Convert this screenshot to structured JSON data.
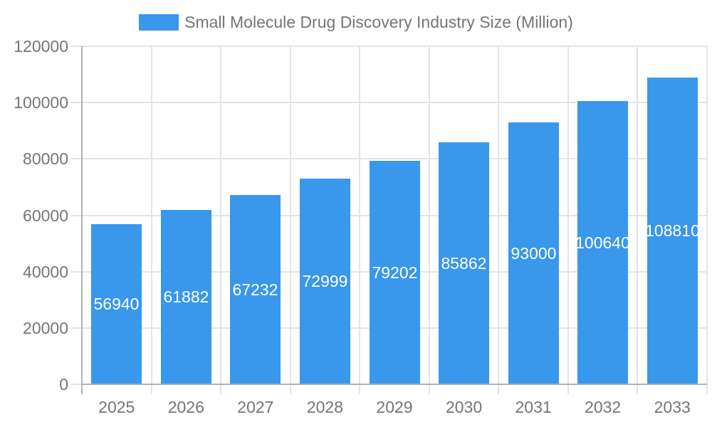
{
  "chart_data": {
    "type": "bar",
    "title": "Small Molecule Drug Discovery Industry Size (Million)",
    "categories": [
      "2025",
      "2026",
      "2027",
      "2028",
      "2029",
      "2030",
      "2031",
      "2032",
      "2033"
    ],
    "values": [
      56940,
      61882,
      67232,
      72999,
      79202,
      85862,
      93000,
      100640,
      108810
    ],
    "xlabel": "",
    "ylabel": "",
    "ylim": [
      0,
      120000
    ],
    "ytick_interval": 20000,
    "ytick_labels": [
      "0",
      "20000",
      "40000",
      "60000",
      "80000",
      "100000",
      "120000"
    ],
    "legend_position": "top",
    "grid": true,
    "value_labels_position": "inside-center",
    "colors": {
      "bar": "#3997EC",
      "bar_label": "#FFFFFF",
      "axis_text": "#757575",
      "axis_line": "#B2B2B2",
      "gridline": "#E4E4E4",
      "background": "#FFFFFF"
    }
  }
}
